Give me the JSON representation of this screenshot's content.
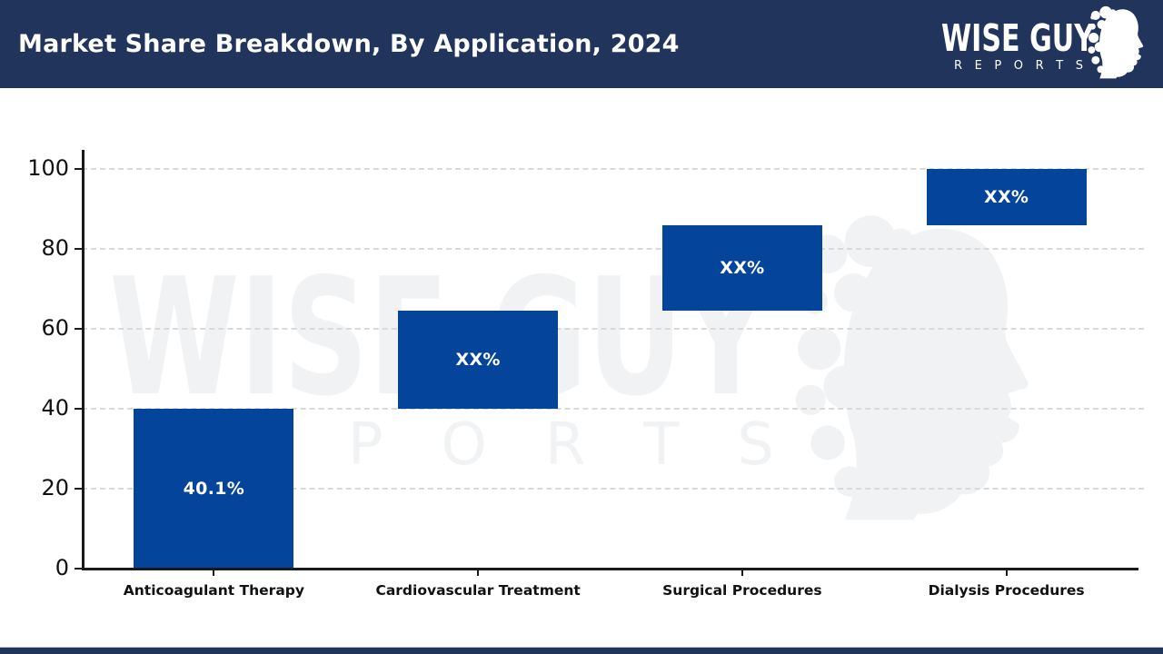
{
  "header": {
    "title": "Market Share Breakdown, By Application, 2024",
    "logo": {
      "brand": "WISE GUY",
      "sub": "R E P O R T S"
    }
  },
  "watermark": {
    "brand": "WISE GUY",
    "sub": "R E P O R T S"
  },
  "chart_data": {
    "type": "bar",
    "subtype": "floating-waterfall",
    "title": "Market Share Breakdown, By Application, 2024",
    "categories": [
      "Anticoagulant Therapy",
      "Cardiovascular Treatment",
      "Surgical Procedures",
      "Dialysis Procedures"
    ],
    "bars": [
      {
        "category": "Anticoagulant Therapy",
        "start": 0,
        "end": 40.1,
        "label": "40.1%"
      },
      {
        "category": "Cardiovascular Treatment",
        "start": 40.1,
        "end": 64.6,
        "label": "XX%"
      },
      {
        "category": "Surgical Procedures",
        "start": 64.6,
        "end": 85.9,
        "label": "XX%"
      },
      {
        "category": "Dialysis Procedures",
        "start": 85.9,
        "end": 100,
        "label": "XX%"
      }
    ],
    "ylim": [
      0,
      100
    ],
    "yticks": [
      0,
      20,
      40,
      60,
      80,
      100
    ],
    "grid": "horizontal-dashed",
    "legend": "none"
  },
  "colors": {
    "header_bg": "#20345C",
    "footer_bg": "#20345C",
    "bar": "#05449B",
    "bar_label": "#FFFFFF",
    "grid": "#D9D9D9",
    "axis": "#1A1A1A",
    "watermark": "#F1F2F4"
  }
}
